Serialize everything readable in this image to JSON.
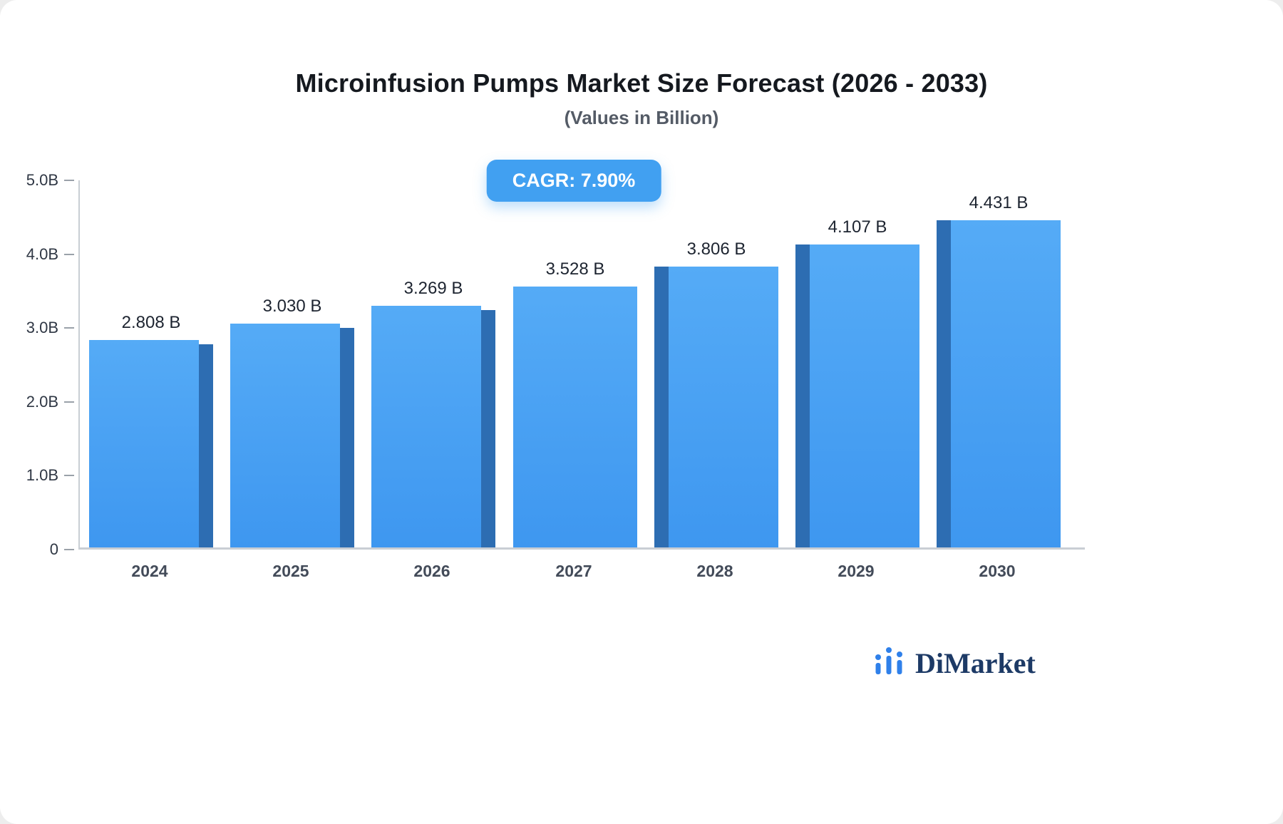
{
  "page": {
    "title": "Microinfusion Pumps Market Size Forecast (2026 - 2033)",
    "subtitle": "(Values in Billion)",
    "cagr_label": "CAGR: 7.90%"
  },
  "brand": {
    "name": "DiMarket",
    "icon": "bar-chart-logo-icon",
    "icon_color": "#2f80ea",
    "text_color": "#1d3a66"
  },
  "colors": {
    "bar_fill_top": "#55abf6",
    "bar_fill_bottom": "#3e97f0",
    "bar_side_shade": "#2d6db2",
    "badge_bg": "#41a0f1",
    "axis": "#c9ced4",
    "title_text": "#15191f",
    "subtitle_text": "#545b66"
  },
  "chart_data": {
    "type": "bar",
    "title": "Microinfusion Pumps Market Size Forecast (2026 - 2033)",
    "subtitle": "(Values in Billion)",
    "categories": [
      "2024",
      "2025",
      "2026",
      "2027",
      "2028",
      "2029",
      "2030"
    ],
    "values": [
      2.808,
      3.03,
      3.269,
      3.528,
      3.806,
      4.107,
      4.431
    ],
    "value_labels": [
      "2.808 B",
      "3.030 B",
      "3.269 B",
      "3.528 B",
      "3.806 B",
      "4.107 B",
      "4.431 B"
    ],
    "bar_shade_side": [
      "right",
      "right",
      "right",
      "none",
      "left",
      "left",
      "left"
    ],
    "xlabel": "",
    "ylabel": "",
    "ylim": [
      0,
      5
    ],
    "ytick_labels_top_to_bottom": [
      "5.0B",
      "4.0B",
      "3.0B",
      "2.0B",
      "1.0B",
      "0"
    ],
    "grid": false,
    "legend": "none",
    "annotation": "CAGR: 7.90%"
  }
}
